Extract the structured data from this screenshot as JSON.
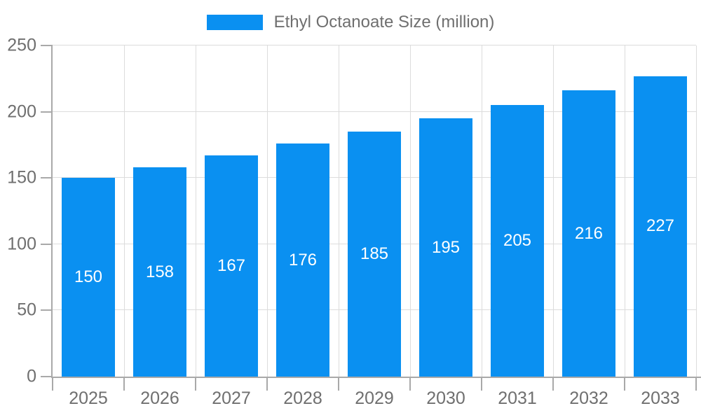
{
  "legend": {
    "label": "Ethyl Octanoate Size (million)",
    "position": "top"
  },
  "chart_data": {
    "type": "bar",
    "title": "Ethyl Octanoate Size (million)",
    "categories": [
      "2025",
      "2026",
      "2027",
      "2028",
      "2029",
      "2030",
      "2031",
      "2032",
      "2033"
    ],
    "values": [
      150,
      158,
      167,
      176,
      185,
      195,
      205,
      216,
      227
    ],
    "series_name": "Ethyl Octanoate Size (million)",
    "xlabel": "",
    "ylabel": "",
    "ylim": [
      0,
      250
    ],
    "yticks": [
      0,
      50,
      100,
      150,
      200,
      250
    ],
    "grid": true,
    "bar_value_labels_visible": true,
    "legend_position": "top",
    "colors": {
      "bar": "#0a90f1",
      "bar_label": "#ffffff",
      "axis": "#a9a9a9",
      "grid": "#dcdcdc",
      "text": "#6f6f6f",
      "background": "#ffffff"
    }
  }
}
